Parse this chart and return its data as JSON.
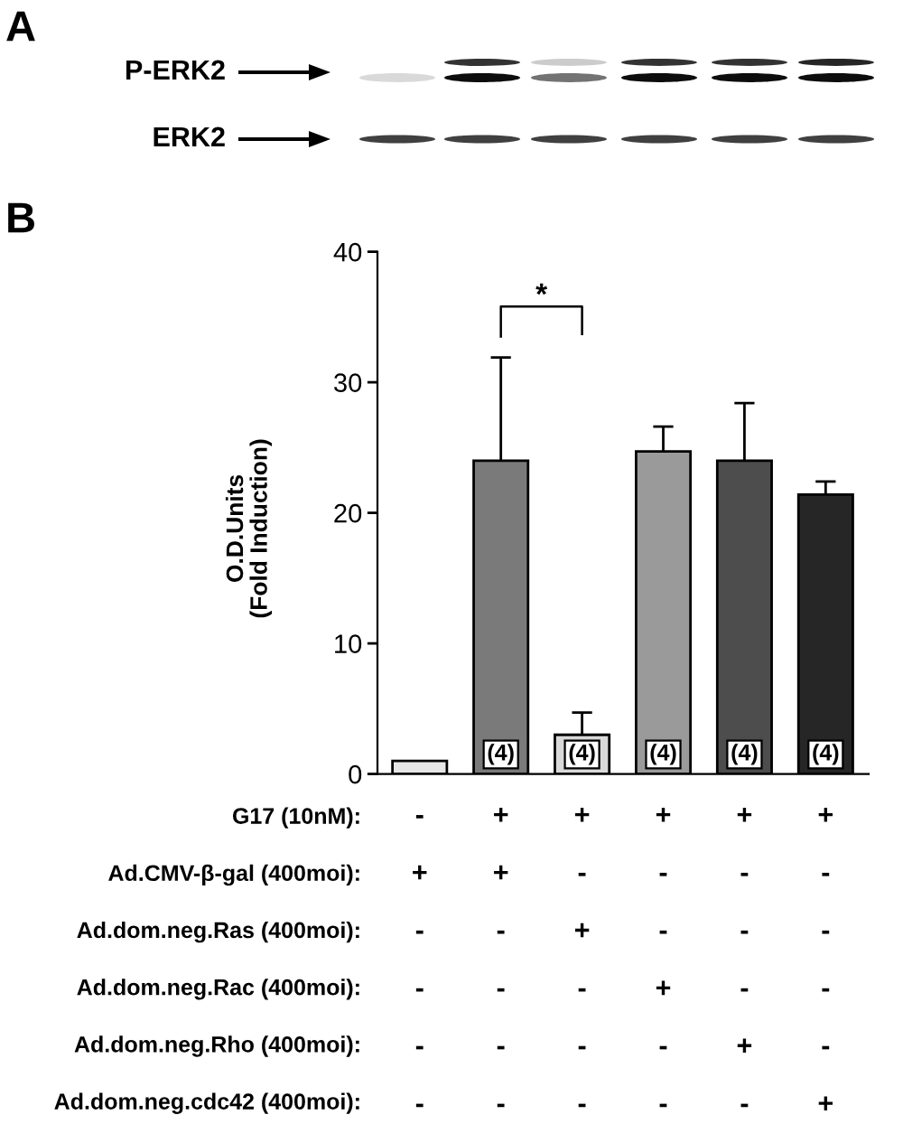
{
  "chart_data": {
    "type": "bar",
    "ylabel": "O.D.Units\n(Fold Induction)",
    "categories": [
      "-\n+\n-\n-\n-\n-",
      "+\n+\n-\n-\n-\n-",
      "+\n-\n+\n-\n-\n-",
      "+\n-\n-\n+\n-\n-",
      "+\n-\n-\n-\n+\n-",
      "+\n-\n-\n-\n-\n+"
    ],
    "values": [
      1.0,
      24.0,
      3.0,
      24.7,
      24.0,
      21.4
    ],
    "colors": [
      "#e6e6e6",
      "#7a7a7a",
      "#d9d9d9",
      "#9a9a9a",
      "#4d4d4d",
      "#262626"
    ],
    "errors": [
      null,
      [
        24.0,
        31.9
      ],
      [
        3.0,
        4.7
      ],
      [
        24.7,
        26.6
      ],
      [
        24.0,
        28.4
      ],
      [
        21.4,
        22.4
      ]
    ],
    "ylim": [
      0,
      40
    ],
    "yticks": [
      0,
      10,
      20,
      30,
      40
    ],
    "annotations": [
      "A",
      "P-ERK2",
      "ERK2",
      "B",
      "*",
      "G17 (10nM):",
      "Ad.CMV-β-gal (400moi):",
      "Ad.dom.neg.Ras (400moi):",
      "Ad.dom.neg.Rac (400moi):",
      "Ad.dom.neg.Rho (400moi):",
      "Ad.dom.neg.cdc42 (400moi):",
      {
        "text": "(4)",
        "x": "+\n+\n-\n-\n-\n-",
        "y": 1.5
      },
      {
        "text": "(4)",
        "x": "+\n-\n+\n-\n-\n-",
        "y": 1.5
      },
      {
        "text": "(4)",
        "x": "+\n-\n-\n+\n-\n-",
        "y": 1.5
      },
      {
        "text": "(4)",
        "x": "+\n-\n-\n-\n+\n-",
        "y": 1.5
      },
      {
        "text": "(4)",
        "x": "+\n-\n-\n-\n-\n+",
        "y": 1.5
      }
    ]
  }
}
